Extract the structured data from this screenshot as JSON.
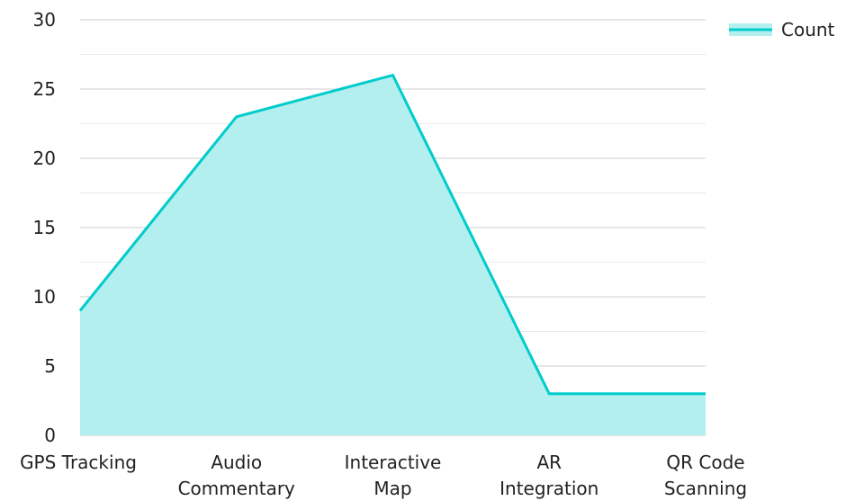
{
  "chart_data": {
    "type": "area",
    "categories": [
      "GPS Tracking",
      "Audio Commentary",
      "Interactive Map",
      "AR Integration",
      "QR Code Scanning"
    ],
    "category_lines": [
      [
        "GPS Tracking"
      ],
      [
        "Audio",
        "Commentary"
      ],
      [
        "Interactive",
        "Map"
      ],
      [
        "AR",
        "Integration"
      ],
      [
        "QR Code",
        "Scanning"
      ]
    ],
    "series": [
      {
        "name": "Count",
        "values": [
          9,
          23,
          26,
          3,
          3
        ]
      }
    ],
    "ylim": [
      0,
      30
    ],
    "y_ticks": [
      0,
      5,
      10,
      15,
      20,
      25,
      30
    ],
    "grid": true,
    "legend_position": "top-right",
    "colors": {
      "line": "#00CCCC",
      "fill": "#B2EFEE",
      "grid": "#CCCCCC"
    }
  }
}
